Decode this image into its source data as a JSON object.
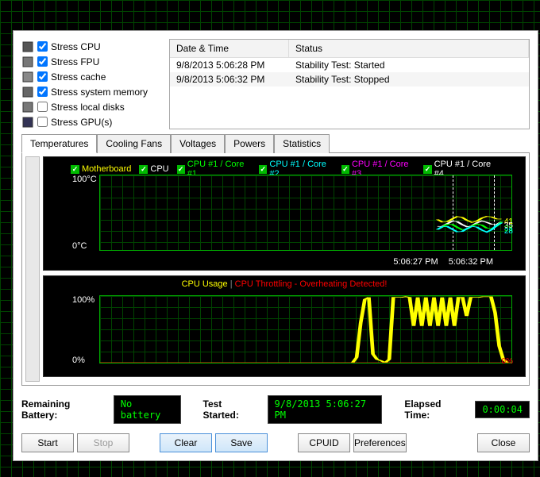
{
  "stress": {
    "items": [
      {
        "label": "Stress CPU",
        "checked": true,
        "icon": "cpu"
      },
      {
        "label": "Stress FPU",
        "checked": true,
        "icon": "fpu"
      },
      {
        "label": "Stress cache",
        "checked": true,
        "icon": "cache"
      },
      {
        "label": "Stress system memory",
        "checked": true,
        "icon": "ram"
      },
      {
        "label": "Stress local disks",
        "checked": false,
        "icon": "disk"
      },
      {
        "label": "Stress GPU(s)",
        "checked": false,
        "icon": "gpu"
      }
    ]
  },
  "log": {
    "headers": {
      "datetime": "Date & Time",
      "status": "Status"
    },
    "rows": [
      {
        "datetime": "9/8/2013 5:06:28 PM",
        "status": "Stability Test: Started"
      },
      {
        "datetime": "9/8/2013 5:06:32 PM",
        "status": "Stability Test: Stopped"
      }
    ]
  },
  "tabs": [
    "Temperatures",
    "Cooling Fans",
    "Voltages",
    "Powers",
    "Statistics"
  ],
  "chart_temp": {
    "type": "line",
    "y_max_label": "100°C",
    "y_min_label": "0°C",
    "ylim": [
      0,
      100
    ],
    "x_labels": [
      "5:06:27 PM",
      "5:06:32 PM"
    ],
    "series": [
      {
        "name": "Motherboard",
        "color": "#ffff00",
        "last_value": 41
      },
      {
        "name": "CPU",
        "color": "#ffffff",
        "last_value": 35
      },
      {
        "name": "CPU #1 / Core #1",
        "color": "#00ff00",
        "last_value": 31
      },
      {
        "name": "CPU #1 / Core #2",
        "color": "#00ffff",
        "last_value": 28
      },
      {
        "name": "CPU #1 / Core #3",
        "color": "#ff00ff",
        "last_value": null
      },
      {
        "name": "CPU #1 / Core #4",
        "color": "#ffffff",
        "last_value": null
      }
    ],
    "background_color": "#000000",
    "grid_color": "#004400"
  },
  "chart_usage": {
    "type": "line",
    "title_usage": "CPU Usage",
    "title_sep": "|",
    "title_throttle": "CPU Throttling - Overheating Detected!",
    "y_max_label": "100%",
    "y_min_label": "0%",
    "ylim": [
      0,
      100
    ],
    "usage_color": "#ffff00",
    "throttle_color": "#ff0000",
    "throttle_last_label": "0%",
    "usage_values": [
      0,
      0,
      0,
      0,
      0,
      0,
      0,
      0,
      0,
      0,
      0,
      0,
      0,
      0,
      0,
      0,
      0,
      0,
      0,
      0,
      0,
      0,
      0,
      0,
      0,
      0,
      0,
      0,
      0,
      0,
      0,
      0,
      0,
      0,
      0,
      0,
      0,
      0,
      0,
      0,
      0,
      0,
      0,
      0,
      0,
      0,
      0,
      0,
      0,
      0,
      0,
      0,
      0,
      0,
      0,
      0,
      0,
      0,
      0,
      0,
      0,
      0,
      0,
      8,
      60,
      95,
      98,
      13,
      5,
      3,
      0,
      5,
      98,
      98,
      98,
      99,
      98,
      55,
      98,
      55,
      98,
      55,
      98,
      55,
      98,
      55,
      98,
      55,
      98,
      98,
      70,
      98,
      98,
      98,
      99,
      99,
      99,
      75,
      25,
      5,
      0,
      0
    ],
    "throttle_values_constant": 0,
    "background_color": "#000000",
    "grid_color": "#004400"
  },
  "status": {
    "battery_label": "Remaining Battery:",
    "battery_value": "No battery",
    "started_label": "Test Started:",
    "started_value": "9/8/2013 5:06:27 PM",
    "elapsed_label": "Elapsed Time:",
    "elapsed_value": "0:00:04"
  },
  "buttons": {
    "start": "Start",
    "stop": "Stop",
    "clear": "Clear",
    "save": "Save",
    "cpuid": "CPUID",
    "preferences": "Preferences",
    "close": "Close"
  }
}
